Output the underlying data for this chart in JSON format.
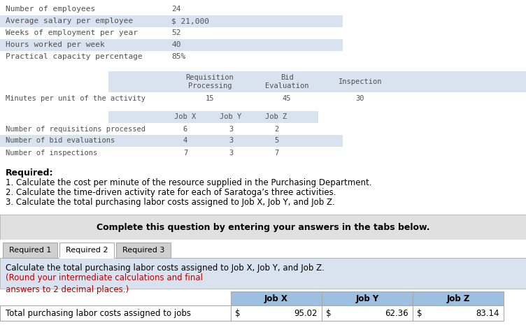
{
  "top_labels": [
    "Number of employees",
    "Average salary per employee",
    "Weeks of employment per year",
    "Hours worked per week",
    "Practical capacity percentage"
  ],
  "top_values": [
    "24",
    "$ 21,000",
    "52",
    "40",
    "85%"
  ],
  "table1_row_label": "Minutes per unit of the activity",
  "table1_values": [
    "15",
    "45",
    "30"
  ],
  "table2_rows": [
    [
      "Number of requisitions processed",
      "6",
      "3",
      "2"
    ],
    [
      "Number of bid evaluations",
      "4",
      "3",
      "5"
    ],
    [
      "Number of inspections",
      "7",
      "3",
      "7"
    ]
  ],
  "required_title": "Required:",
  "required_items": [
    "1. Calculate the cost per minute of the resource supplied in the Purchasing Department.",
    "2. Calculate the time-driven activity rate for each of Saratoga’s three activities.",
    "3. Calculate the total purchasing labor costs assigned to Job X, Job Y, and Job Z."
  ],
  "complete_text": "Complete this question by entering your answers in the tabs below.",
  "tabs": [
    "Required 1",
    "Required 2",
    "Required 3"
  ],
  "active_tab": 2,
  "instruction_black": "Calculate the total purchasing labor costs assigned to Job X, Job Y, and Job Z. ",
  "instruction_red": "(Round your intermediate calculations and final\nanswers to 2 decimal places.)",
  "answer_row_label": "Total purchasing labor costs assigned to jobs",
  "answer_values": [
    [
      "$",
      "95.02"
    ],
    [
      "$",
      "62.36"
    ],
    [
      "$",
      "83.14"
    ]
  ],
  "bg_white": "#ffffff",
  "bg_light_gray": "#e0e0e0",
  "bg_blue_header": "#9dbfe0",
  "bg_light_blue": "#d9e2ef",
  "bg_tab_area": "#d0d0d0",
  "color_red": "#c00000",
  "color_black": "#000000",
  "color_dark_gray": "#505050",
  "color_border": "#aaaaaa",
  "font_mono": "DejaVu Sans Mono",
  "font_sans": "DejaVu Sans"
}
